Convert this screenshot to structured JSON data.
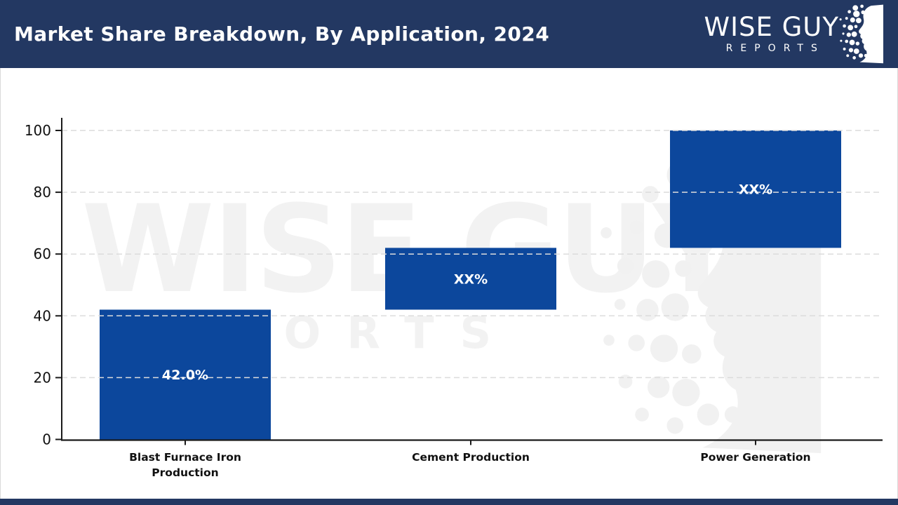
{
  "header": {
    "title": "Market Share Breakdown, By Application, 2024",
    "bg_color": "#233862",
    "logo": {
      "line1": "WISE GUY",
      "line2": "REPORTS"
    }
  },
  "watermark": {
    "line1": "WISE GUY",
    "line2": "REPORTS"
  },
  "chart_data": {
    "type": "bar",
    "subtype": "waterfall",
    "title": "Market Share Breakdown, By Application, 2024",
    "categories": [
      "Blast Furnace Iron Production",
      "Cement Production",
      "Power Generation"
    ],
    "category_label_lines": [
      [
        "Blast Furnace Iron",
        "Production"
      ],
      [
        "Cement Production"
      ],
      [
        "Power Generation"
      ]
    ],
    "bars": [
      {
        "category": "Blast Furnace Iron Production",
        "start": 0,
        "end": 42,
        "label": "42.0%"
      },
      {
        "category": "Cement Production",
        "start": 42,
        "end": 62,
        "label": "XX%"
      },
      {
        "category": "Power Generation",
        "start": 62,
        "end": 100,
        "label": "XX%"
      }
    ],
    "xlabel": "",
    "ylabel": "",
    "ylim": [
      0,
      100
    ],
    "yticks": [
      0,
      20,
      40,
      60,
      80,
      100
    ],
    "grid": "horizontal-dashed-above-bars",
    "legend": "none",
    "bar_color": "#0c479c",
    "grid_color": "#dcdcdc",
    "axis_color": "#1a1a1a",
    "label_color": "#111111",
    "value_label_color": "#ffffff"
  },
  "footer": {
    "bg_color": "#233862"
  }
}
